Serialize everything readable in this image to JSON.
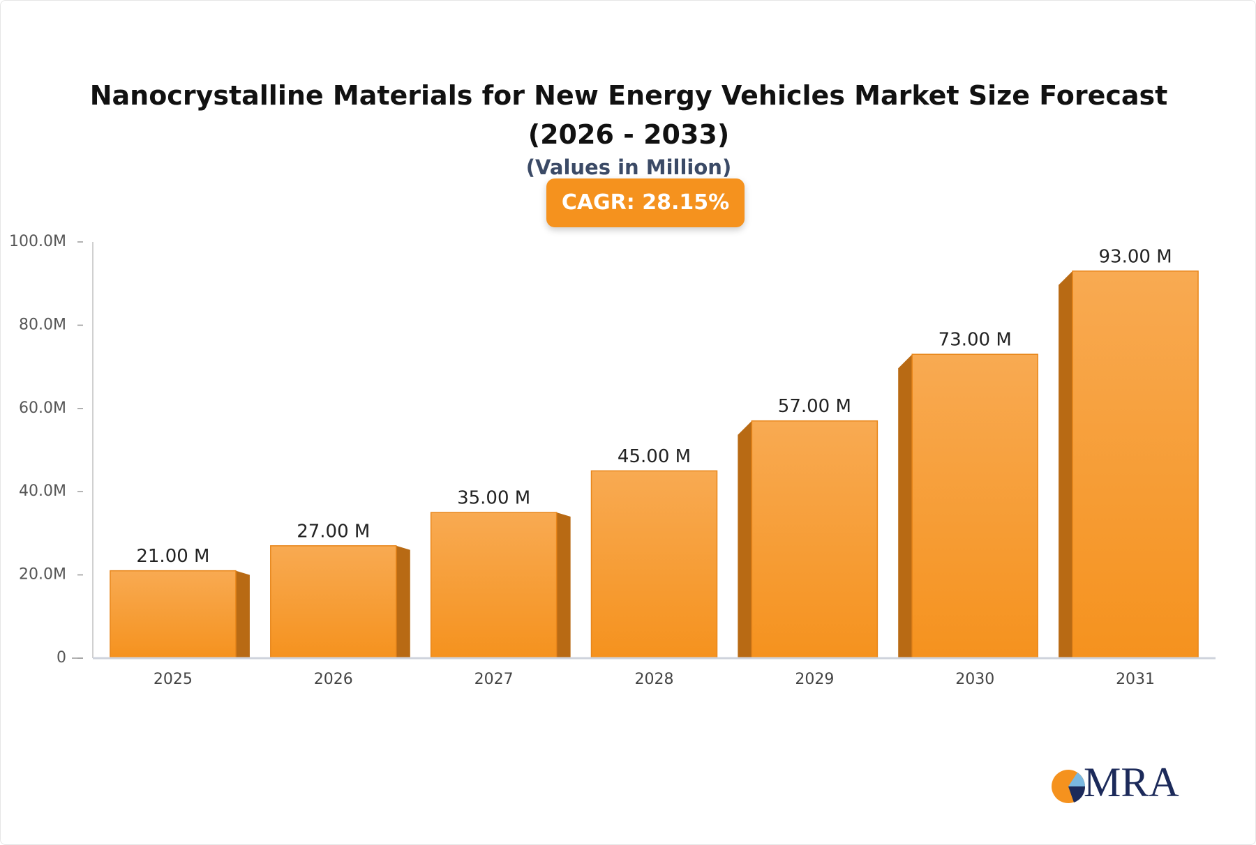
{
  "chart_data": {
    "type": "bar",
    "title": "Nanocrystalline Materials for New Energy Vehicles Market Size Forecast (2026 - 2033)",
    "subtitle": "(Values in Million)",
    "badge": "CAGR: 28.15%",
    "categories": [
      "2025",
      "2026",
      "2027",
      "2028",
      "2029",
      "2030",
      "2031"
    ],
    "values": [
      21,
      27,
      35,
      45,
      57,
      73,
      93
    ],
    "value_labels": [
      "21.00 M",
      "27.00 M",
      "35.00 M",
      "45.00 M",
      "57.00 M",
      "73.00 M",
      "93.00 M"
    ],
    "color": "#f5921e",
    "ylim": [
      0,
      100
    ],
    "yticks": [
      0,
      {
        "value": 20,
        "label": "20.0M"
      },
      {
        "value": 40,
        "label": "40.0M"
      },
      {
        "value": 60,
        "label": "60.0M"
      },
      {
        "value": 80,
        "label": "80.0M"
      },
      {
        "value": 100,
        "label": "100.0M"
      }
    ],
    "grid": false
  },
  "logo": "MRA"
}
